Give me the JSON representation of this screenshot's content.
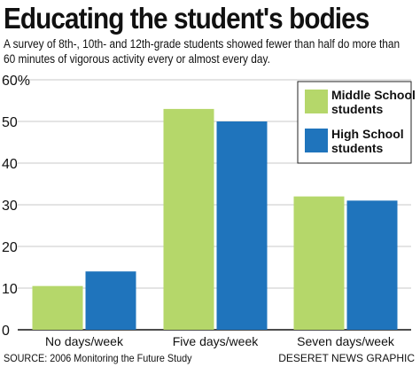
{
  "title": "Educating the student's bodies",
  "subtitle": "A survey of 8th-, 10th- and 12th-grade students showed fewer than half do more than 60 minutes of vigorous activity every or almost every day.",
  "source": "SOURCE: 2006 Monitoring the Future Study",
  "credit": "DESERET NEWS GRAPHIC",
  "colors": {
    "middle_school": "#b5d76a",
    "high_school": "#1f74bc"
  },
  "chart_data": {
    "type": "bar",
    "categories": [
      "No days/week",
      "Five days/week",
      "Seven days/week"
    ],
    "series": [
      {
        "name": "Middle School students",
        "values": [
          10.5,
          53,
          32
        ]
      },
      {
        "name": "High School students",
        "values": [
          14,
          50,
          31
        ]
      }
    ],
    "yticks": [
      "0",
      "10",
      "20",
      "30",
      "40",
      "50",
      "60%"
    ],
    "ylim": [
      0,
      60
    ],
    "legend": "top-right",
    "grid": true
  }
}
